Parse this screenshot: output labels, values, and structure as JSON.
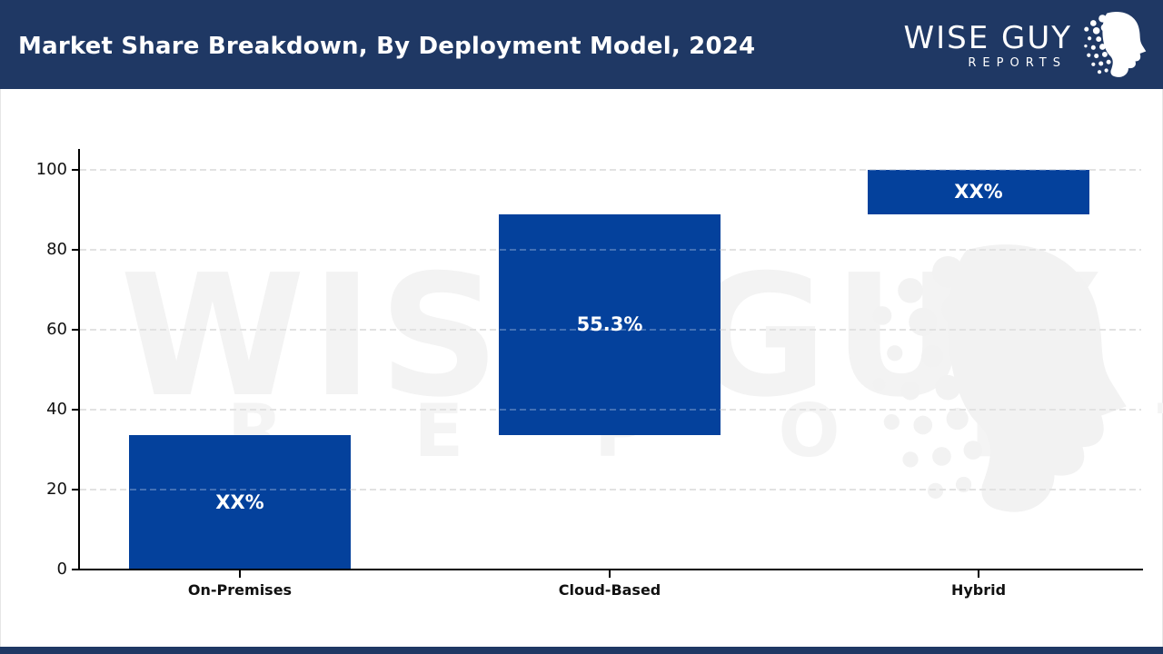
{
  "header": {
    "title": "Market Share Breakdown, By Deployment Model, 2024",
    "logo": {
      "line1": "WISE GUY",
      "line2": "REPORTS"
    }
  },
  "watermark": {
    "line1": "WISE GUY",
    "line2": "R E P O R T S"
  },
  "colors": {
    "header_bg": "#1F3864",
    "bar_fill": "#04419C",
    "bar_label": "#ffffff",
    "gridline": "#d9d9d9",
    "axis": "#000000",
    "watermark": "#f3f3f3"
  },
  "chart_data": {
    "type": "bar",
    "variant": "floating-waterfall",
    "title": "Market Share Breakdown, By Deployment Model, 2024",
    "xlabel": "",
    "ylabel": "",
    "categories": [
      "On-Premises",
      "Cloud-Based",
      "Hybrid"
    ],
    "segments": [
      {
        "category": "On-Premises",
        "start": 0,
        "end": 33.7,
        "height": 33.7,
        "label": "XX%",
        "value_masked": true
      },
      {
        "category": "Cloud-Based",
        "start": 33.7,
        "end": 89.0,
        "height": 55.3,
        "label": "55.3%",
        "value_masked": false
      },
      {
        "category": "Hybrid",
        "start": 89.0,
        "end": 100.0,
        "height": 11.0,
        "label": "XX%",
        "value_masked": true
      }
    ],
    "yticks": [
      0,
      20,
      40,
      60,
      80,
      100
    ],
    "ylim": [
      0,
      105
    ],
    "grid": "dashed-horizontal",
    "legend": "none",
    "bar_color": "#04419C",
    "label_color": "#ffffff"
  }
}
